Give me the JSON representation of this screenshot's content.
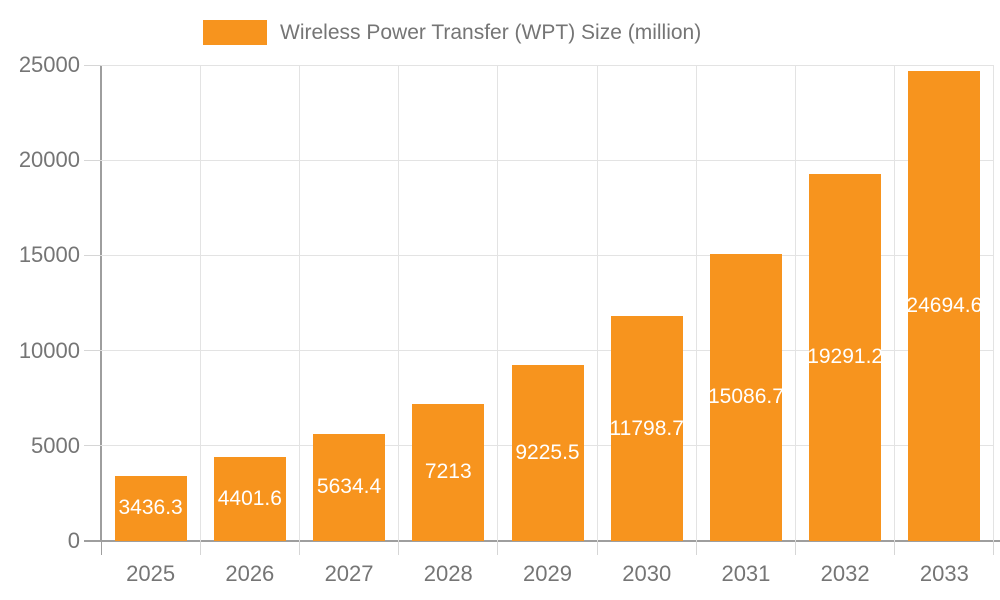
{
  "legend": {
    "label": "Wireless Power Transfer (WPT) Size (million)",
    "swatch_color": "#f7941e"
  },
  "chart_data": {
    "type": "bar",
    "title": "Wireless Power Transfer (WPT) Size (million)",
    "categories": [
      "2025",
      "2026",
      "2027",
      "2028",
      "2029",
      "2030",
      "2031",
      "2032",
      "2033"
    ],
    "values": [
      3436.3,
      4401.6,
      5634.4,
      7213,
      9225.5,
      11798.7,
      15086.7,
      19291.2,
      24694.6
    ],
    "bar_labels": [
      "3436.3",
      "4401.6",
      "5634.4",
      "7213",
      "9225.5",
      "11798.7",
      "15086.7",
      "19291.2",
      "24694.6"
    ],
    "xlabel": "",
    "ylabel": "",
    "ylim": [
      0,
      25000
    ],
    "yticks": [
      0,
      5000,
      10000,
      15000,
      20000,
      25000
    ],
    "grid": true,
    "legend_position": "top",
    "bar_color": "#f7941e",
    "bar_label_color": "#ffffff",
    "axis_text_color": "#757575",
    "grid_color": "#e3e3e3",
    "axis_line_color": "#9e9e9e",
    "background_color": "#ffffff"
  }
}
